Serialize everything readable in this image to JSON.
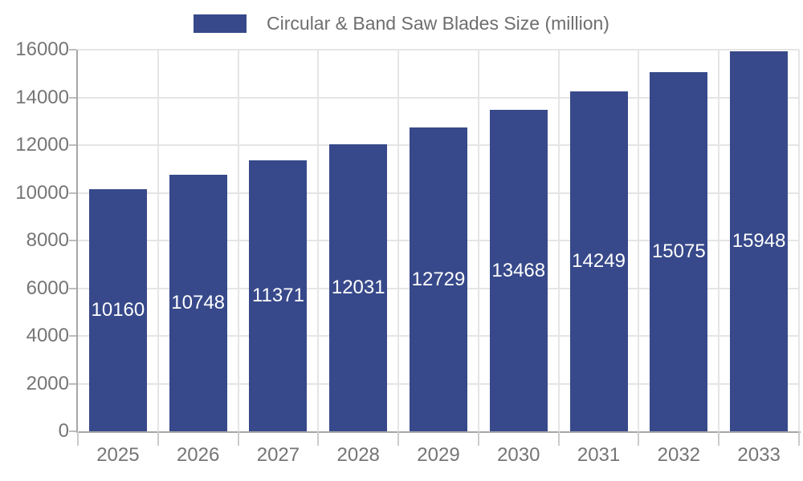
{
  "chart_data": {
    "type": "bar",
    "title": "Circular & Band Saw Blades Size (million)",
    "legend_label": "Circular & Band Saw Blades Size (million)",
    "legend_position": "top-center",
    "categories": [
      "2025",
      "2026",
      "2027",
      "2028",
      "2029",
      "2030",
      "2031",
      "2032",
      "2033"
    ],
    "values": [
      10160,
      10748,
      11371,
      12031,
      12729,
      13468,
      14249,
      15075,
      15948
    ],
    "value_labels_shown": true,
    "xlabel": "",
    "ylabel": "",
    "ylim": [
      0,
      16000
    ],
    "yticks": [
      0,
      2000,
      4000,
      6000,
      8000,
      10000,
      12000,
      14000,
      16000
    ],
    "grid": true,
    "colors": {
      "bar": "#37498a",
      "value_label": "#ffffff",
      "axis_text": "#757575",
      "legend_text": "#6e6e6e",
      "gridline": "#e5e5e5",
      "axis_line": "#a6a6a6"
    }
  }
}
